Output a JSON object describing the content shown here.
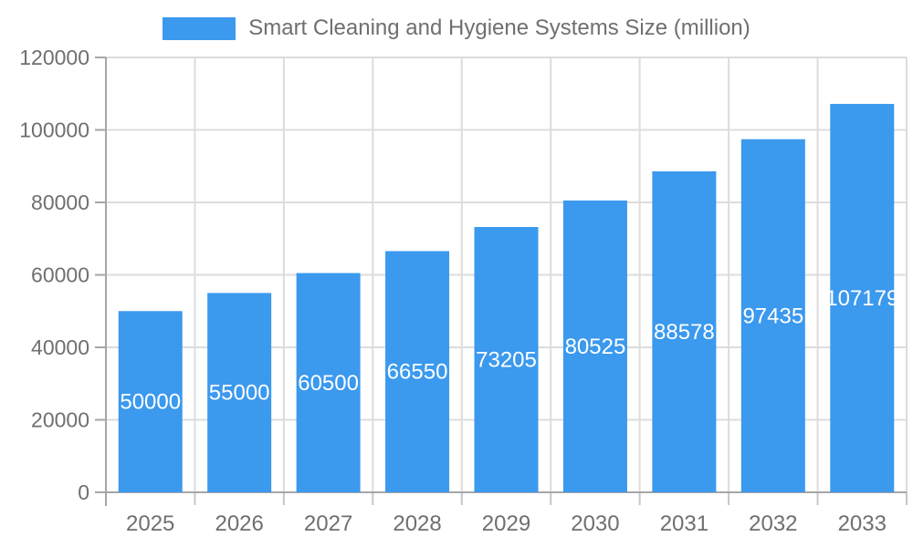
{
  "chart_data": {
    "type": "bar",
    "legend": "Smart Cleaning and Hygiene Systems Size (million)",
    "legend_position": "top-center",
    "categories": [
      "2025",
      "2026",
      "2027",
      "2028",
      "2029",
      "2030",
      "2031",
      "2032",
      "2033"
    ],
    "values": [
      50000,
      55000,
      60500,
      66550,
      73205,
      80525,
      88578,
      97435,
      107179
    ],
    "xlabel": "",
    "ylabel": "",
    "ylim": [
      0,
      120000
    ],
    "yticks": [
      0,
      20000,
      40000,
      60000,
      80000,
      100000,
      120000
    ],
    "grid": true,
    "bar_labels_inside": true,
    "colors": {
      "bar": "#3b99ee",
      "bar_label": "#ffffff",
      "text": "#6f6f6f",
      "grid": "#dcdcdc",
      "axis": "#a6a6a6",
      "tick": "#c6c6c6"
    }
  }
}
